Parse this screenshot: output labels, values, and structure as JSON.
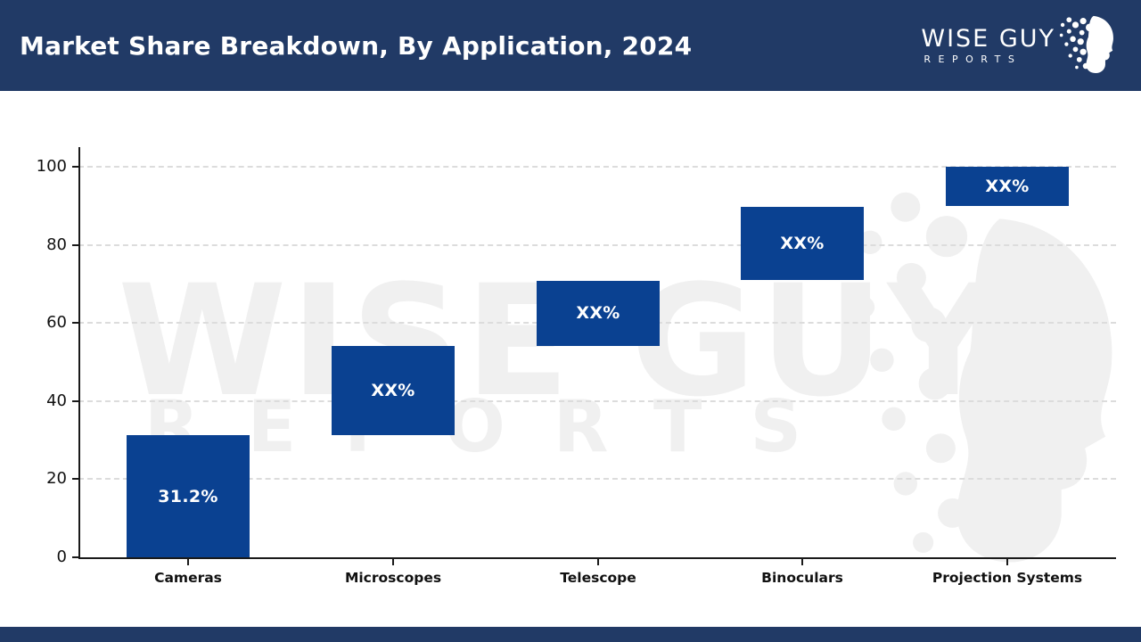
{
  "header": {
    "title": "Market Share Breakdown, By Application, 2024",
    "logo": {
      "name": "WISE GUY",
      "tagline": "REPORTS"
    }
  },
  "watermark": {
    "line1": "WISE GUY",
    "line2": "REPORTS"
  },
  "colors": {
    "header_bg": "#213a66",
    "footer_bg": "#213a66",
    "bar": "#0a4191",
    "grid": "#dcdcdc",
    "axis": "#1a1a1a",
    "bar_label": "#ffffff",
    "watermark": "#f0f0f0"
  },
  "chart_data": {
    "type": "bar",
    "subtype": "waterfall",
    "title": "Market Share Breakdown, By Application, 2024",
    "xlabel": "",
    "ylabel": "",
    "categories": [
      "Cameras",
      "Microscopes",
      "Telescope",
      "Binoculars",
      "Projection Systems"
    ],
    "segments": [
      {
        "category": "Cameras",
        "start": 0,
        "end": 31.2,
        "label": "31.2%"
      },
      {
        "category": "Microscopes",
        "start": 31.3,
        "end": 54.1,
        "label": "XX%"
      },
      {
        "category": "Telescope",
        "start": 54.2,
        "end": 70.8,
        "label": "XX%"
      },
      {
        "category": "Binoculars",
        "start": 71.0,
        "end": 89.7,
        "label": "XX%"
      },
      {
        "category": "Projection Systems",
        "start": 90.0,
        "end": 100.0,
        "label": "XX%"
      }
    ],
    "yticks": [
      0,
      20,
      40,
      60,
      80,
      100
    ],
    "ylim": [
      0,
      105
    ],
    "grid": "horizontal-dashed",
    "legend": "none",
    "bar_color": "#0a4191",
    "value_label_color": "#ffffff"
  }
}
